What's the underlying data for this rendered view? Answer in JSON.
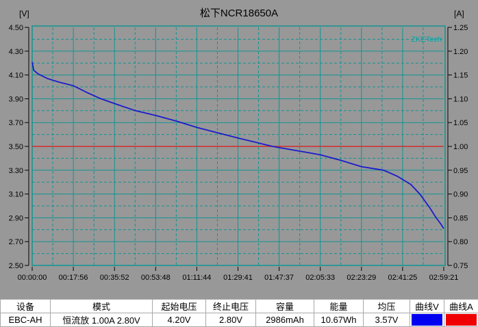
{
  "chart_data": {
    "type": "line",
    "title": "松下NCR18650A",
    "watermark": "ZKETech",
    "left_axis": {
      "unit": "[V]",
      "min": 2.5,
      "max": 4.5,
      "tick_step": 0.2,
      "minor_step": 0.1,
      "ticks": [
        "4.50",
        "4.30",
        "4.10",
        "3.90",
        "3.70",
        "3.50",
        "3.30",
        "3.10",
        "2.90",
        "2.70",
        "2.50"
      ]
    },
    "right_axis": {
      "unit": "[A]",
      "min": 0.75,
      "max": 1.25,
      "tick_step": 0.05,
      "ticks": [
        "1.25",
        "1.20",
        "1.15",
        "1.10",
        "1.05",
        "1.00",
        "0.95",
        "0.90",
        "0.85",
        "0.80",
        "0.75"
      ]
    },
    "x_axis": {
      "total_seconds": 10761,
      "ticks": [
        "00:00:00",
        "00:17:56",
        "00:35:52",
        "00:53:48",
        "01:11:44",
        "01:29:41",
        "01:47:37",
        "02:05:33",
        "02:23:29",
        "02:41:25",
        "02:59:21"
      ]
    },
    "series": [
      {
        "name": "曲线V",
        "axis": "left",
        "color": "#1a1acc",
        "points": [
          [
            0,
            4.21
          ],
          [
            40,
            4.14
          ],
          [
            150,
            4.11
          ],
          [
            400,
            4.07
          ],
          [
            700,
            4.04
          ],
          [
            1076,
            4.01
          ],
          [
            1450,
            3.95
          ],
          [
            1800,
            3.9
          ],
          [
            2152,
            3.86
          ],
          [
            2700,
            3.8
          ],
          [
            3228,
            3.76
          ],
          [
            3800,
            3.71
          ],
          [
            4304,
            3.66
          ],
          [
            4900,
            3.61
          ],
          [
            5380,
            3.57
          ],
          [
            5900,
            3.53
          ],
          [
            6285,
            3.5
          ],
          [
            6456,
            3.49
          ],
          [
            7000,
            3.46
          ],
          [
            7532,
            3.43
          ],
          [
            8100,
            3.38
          ],
          [
            8608,
            3.33
          ],
          [
            9185,
            3.3
          ],
          [
            9543,
            3.25
          ],
          [
            9901,
            3.18
          ],
          [
            10134,
            3.1
          ],
          [
            10384,
            2.99
          ],
          [
            10563,
            2.9
          ],
          [
            10680,
            2.85
          ],
          [
            10761,
            2.81
          ]
        ]
      },
      {
        "name": "曲线A",
        "axis": "right",
        "color": "#d42a2a",
        "points": [
          [
            0,
            1.0
          ],
          [
            10761,
            1.0
          ]
        ]
      }
    ],
    "colors": {
      "background": "#989898",
      "grid": "#0f9494",
      "plot_border": "#0f9494",
      "axis": "#000000",
      "curve_v": "#1a1acc",
      "curve_a": "#d42a2a"
    }
  },
  "table": {
    "columns": [
      {
        "key": "device",
        "header": "设备",
        "value": "EBC-AH"
      },
      {
        "key": "mode",
        "header": "模式",
        "value": "恒流放  1.00A  2.80V"
      },
      {
        "key": "start-voltage",
        "header": "起始电压",
        "value": "4.20V"
      },
      {
        "key": "end-voltage",
        "header": "终止电压",
        "value": "2.80V"
      },
      {
        "key": "capacity",
        "header": "容量",
        "value": "2986mAh"
      },
      {
        "key": "energy",
        "header": "能量",
        "value": "10.67Wh"
      },
      {
        "key": "avg-voltage",
        "header": "均压",
        "value": "3.57V"
      },
      {
        "key": "curve-v",
        "header": "曲线V",
        "swatch": "#0000f0"
      },
      {
        "key": "curve-a",
        "header": "曲线A",
        "swatch": "#f00000"
      }
    ]
  }
}
